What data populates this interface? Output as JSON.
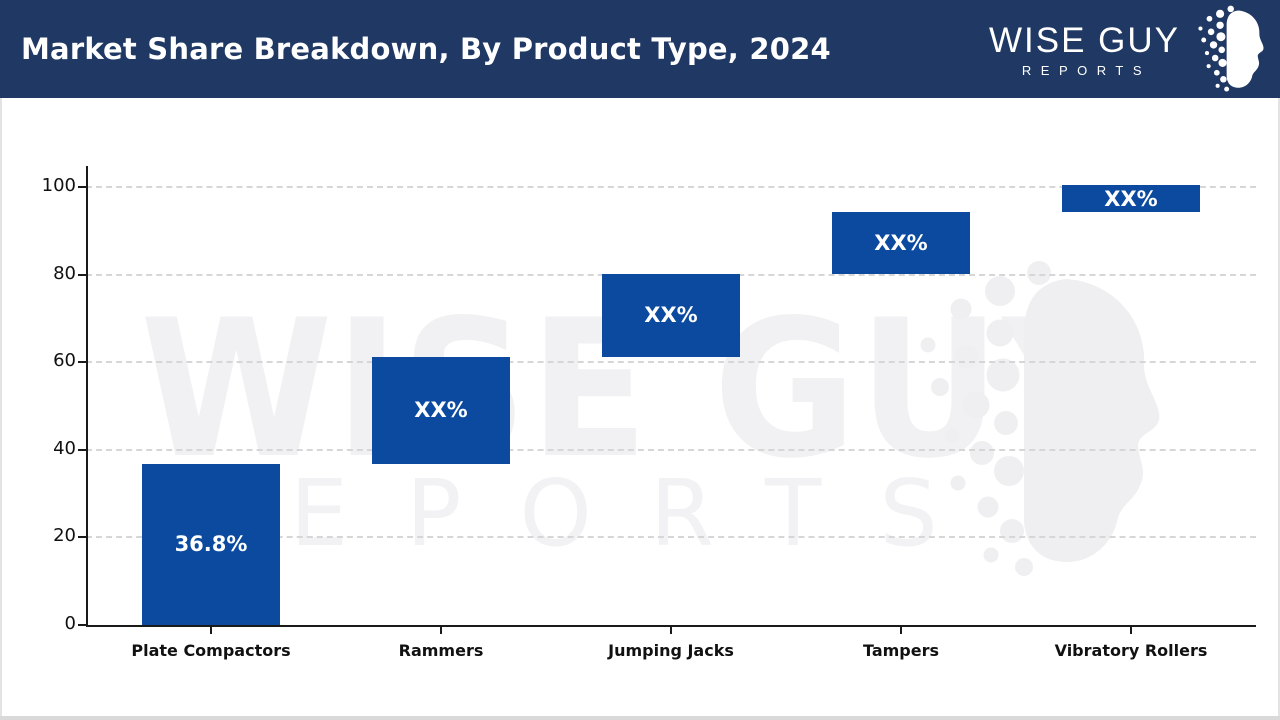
{
  "header": {
    "title": "Market Share Breakdown, By Product Type, 2024",
    "bg_color": "#1f3864",
    "logo": {
      "wordmark": "WISE GUY",
      "subtext": "REPORTS"
    }
  },
  "watermark": {
    "wordmark": "WISE GUY",
    "subtext": "REPORTS"
  },
  "chart_data": {
    "type": "bar",
    "subtype": "waterfall",
    "title": "Market Share Breakdown, By Product Type, 2024",
    "categories": [
      "Plate Compactors",
      "Rammers",
      "Jumping Jacks",
      "Tampers",
      "Vibratory Rollers"
    ],
    "segments": [
      {
        "category": "Plate Compactors",
        "from": 0,
        "to": 36.8,
        "size": 36.8,
        "label": "36.8%"
      },
      {
        "category": "Rammers",
        "from": 36.8,
        "to": 61.2,
        "size": 24.4,
        "label": "XX%"
      },
      {
        "category": "Jumping Jacks",
        "from": 61.2,
        "to": 80.2,
        "size": 19.0,
        "label": "XX%"
      },
      {
        "category": "Tampers",
        "from": 80.2,
        "to": 94.2,
        "size": 14.0,
        "label": "XX%"
      },
      {
        "category": "Vibratory Rollers",
        "from": 94.2,
        "to": 100.4,
        "size": 6.2,
        "label": "XX%"
      }
    ],
    "yticks": [
      0,
      20,
      40,
      60,
      80,
      100
    ],
    "ylim": [
      0,
      104
    ],
    "xlabel": "",
    "ylabel": "",
    "grid": "horizontal-dashed",
    "legend": "none",
    "bar_color": "#0b4a9f",
    "bar_label_color": "#ffffff",
    "axis_color": "#1a1a1a"
  }
}
